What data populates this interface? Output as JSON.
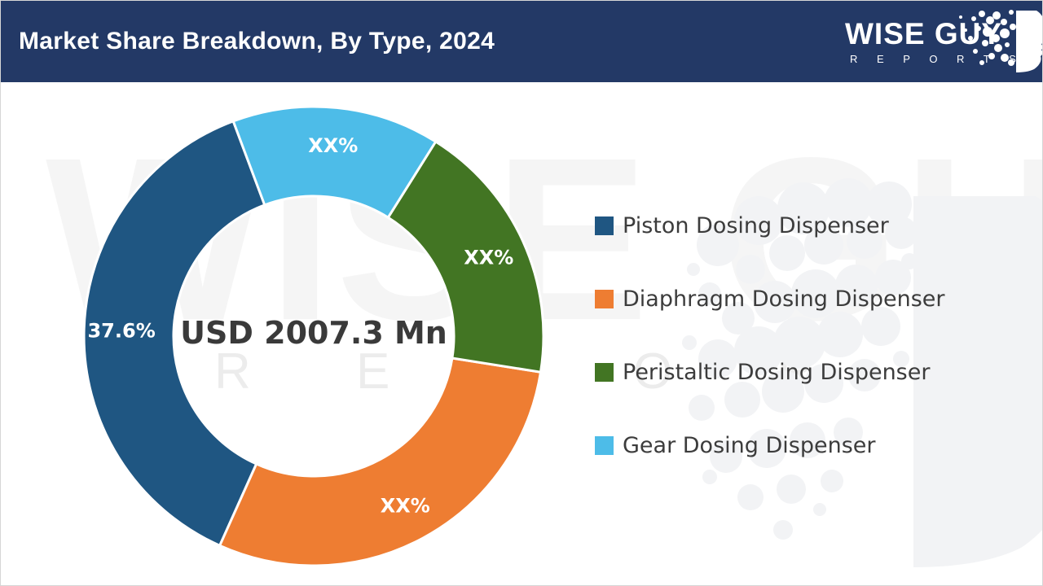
{
  "header": {
    "title": "Market Share Breakdown, By Type, 2024",
    "bg_color": "#233966",
    "logo": {
      "brand": "WISE GUY",
      "sub_brand": "R E P O R T S"
    }
  },
  "chart_data": {
    "type": "pie",
    "subtype": "donut",
    "title": "Market Share Breakdown, By Type, 2024",
    "center_label": "USD 2007.3 Mn",
    "start_angle_deg": 110.5,
    "counterclockwise": true,
    "inner_radius_ratio": 0.61,
    "legend_position": "right",
    "slice_label_color": "#FFFFFF",
    "center_label_color": "#3A3A3A",
    "segments": [
      {
        "label": "Piston Dosing Dispenser",
        "value_pct": 37.6,
        "display_label": "37.6%",
        "color": "#1F5682"
      },
      {
        "label": "Diaphragm Dosing Dispenser",
        "value_pct": 29.2,
        "display_label": "XX%",
        "color": "#EE7D32"
      },
      {
        "label": "Peristaltic Dosing Dispenser",
        "value_pct": 18.6,
        "display_label": "XX%",
        "color": "#427523"
      },
      {
        "label": "Gear Dosing Dispenser",
        "value_pct": 14.6,
        "display_label": "XX%",
        "color": "#4DBCE8"
      }
    ]
  },
  "watermark": {
    "line1": "WISE GUY",
    "line2": "R E P O R T S"
  }
}
